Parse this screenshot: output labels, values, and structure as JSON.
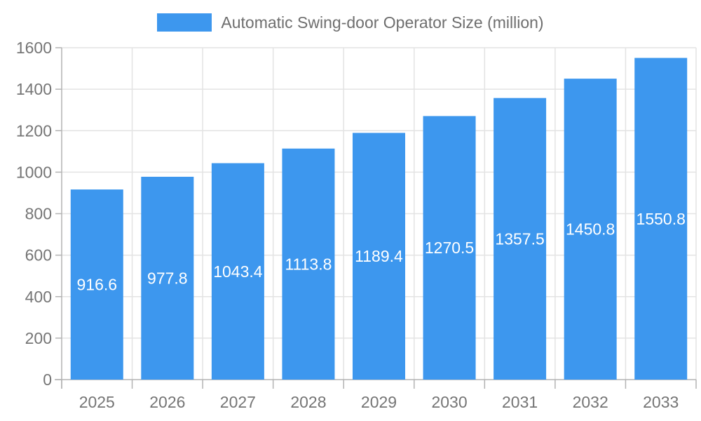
{
  "legend": {
    "swatch_color": "#3d97ee",
    "label": "Automatic Swing-door Operator Size (million)"
  },
  "chart_data": {
    "type": "bar",
    "title": "Automatic Swing-door Operator Size (million)",
    "categories": [
      "2025",
      "2026",
      "2027",
      "2028",
      "2029",
      "2030",
      "2031",
      "2032",
      "2033"
    ],
    "values": [
      916.6,
      977.8,
      1043.4,
      1113.8,
      1189.4,
      1270.5,
      1357.5,
      1450.8,
      1550.8
    ],
    "value_labels": [
      "916.6",
      "977.8",
      "1043.4",
      "1113.8",
      "1189.4",
      "1270.5",
      "1357.5",
      "1450.8",
      "1550.8"
    ],
    "xlabel": "",
    "ylabel": "",
    "ylim": [
      0,
      1600
    ],
    "ytick_step": 200,
    "yticks": [
      0,
      200,
      400,
      600,
      800,
      1000,
      1200,
      1400,
      1600
    ],
    "grid": true,
    "legend_position": "top-center",
    "colors": {
      "bar_fill": "#3d97ee",
      "value_label_text": "#ffffff",
      "axis_label_text": "#757575",
      "legend_text": "#6e6e6e",
      "gridline": "#e3e3e3",
      "axis_line": "#b3b3b3",
      "background": "#ffffff"
    }
  }
}
